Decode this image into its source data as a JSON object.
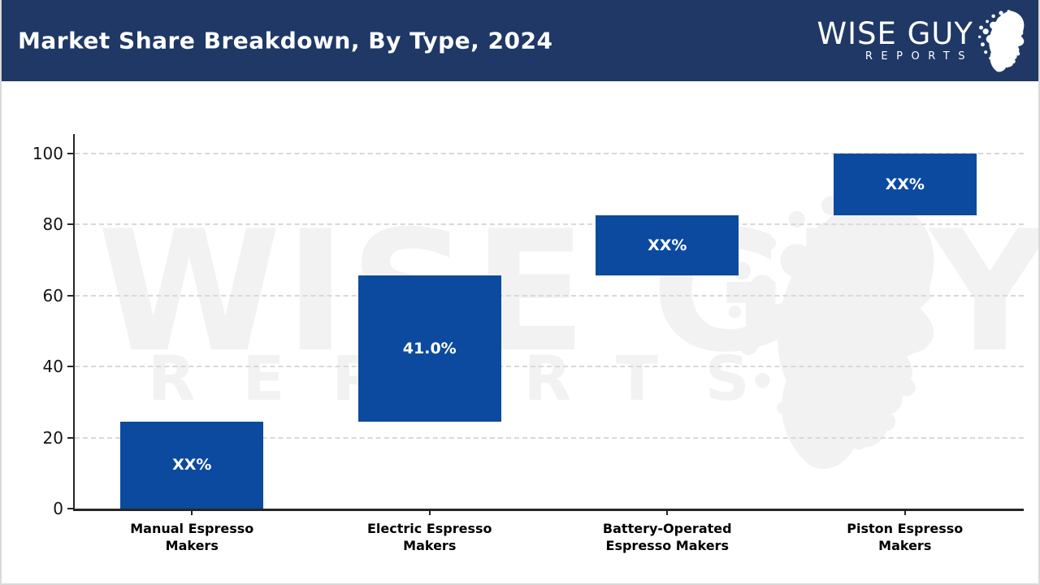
{
  "header": {
    "title": "Market Share Breakdown, By Type, 2024",
    "logo": {
      "wordmark": "WISE GUY",
      "subtext": "REPORTS"
    }
  },
  "watermark": {
    "wordmark": "WISE GUY",
    "subtext": "REPORTS"
  },
  "chart_data": {
    "type": "bar",
    "variant": "waterfall",
    "title": "Market Share Breakdown, By Type, 2024",
    "categories": [
      "Manual Espresso Makers",
      "Electric Espresso Makers",
      "Battery-Operated Espresso Makers",
      "Piston Espresso Makers"
    ],
    "segments": [
      {
        "category": "Manual Espresso Makers",
        "label": "XX%",
        "start": 0,
        "end": 24.5
      },
      {
        "category": "Electric Espresso Makers",
        "label": "41.0%",
        "start": 24.5,
        "end": 65.5
      },
      {
        "category": "Battery-Operated Espresso Makers",
        "label": "XX%",
        "start": 65.5,
        "end": 82.5
      },
      {
        "category": "Piston Espresso Makers",
        "label": "XX%",
        "start": 82.5,
        "end": 100
      }
    ],
    "yticks": [
      0,
      20,
      40,
      60,
      80,
      100
    ],
    "ylim": [
      0,
      105
    ],
    "xlabel": "",
    "ylabel": "",
    "grid": "horizontal-dashed",
    "legend": "none",
    "colors": {
      "bar": "#0b4a9f",
      "bar_label": "#ffffff",
      "header_bg": "#1f3865",
      "grid": "#d9d9d9",
      "axis": "#262626",
      "watermark": "#f2f2f2"
    }
  }
}
